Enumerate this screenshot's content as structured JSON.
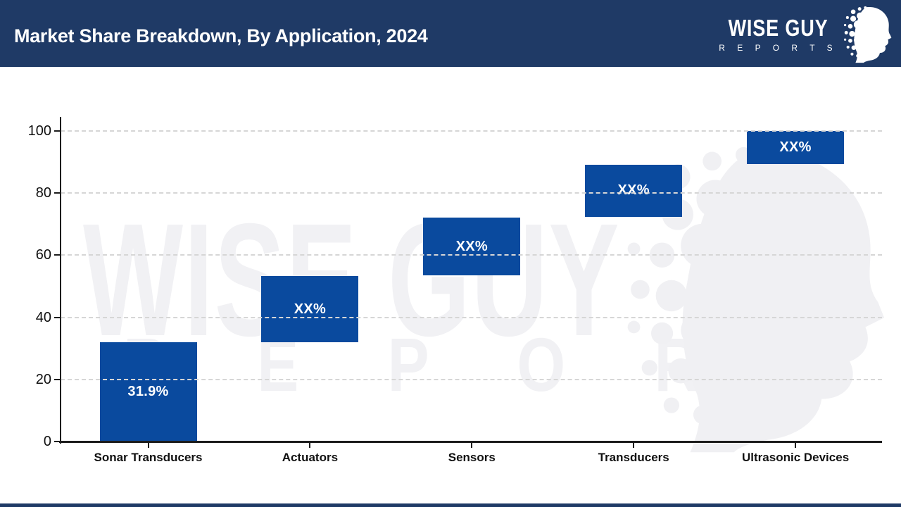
{
  "header": {
    "title": "Market Share Breakdown, By Application, 2024",
    "brand": {
      "line1": "WISE GUY",
      "line2": "R E P O R T S"
    }
  },
  "watermark": {
    "line1": "WISE GUY",
    "line2": "R E P O R T S"
  },
  "colors": {
    "header_bg": "#1f3a66",
    "footer_bg": "#1f3a66",
    "bar": "#0a4a9e",
    "gridline": "#d6d6d6",
    "axis": "#1c1c1c",
    "bar_label": "#ffffff",
    "watermark": "#f1f1f4"
  },
  "chart_data": {
    "type": "bar",
    "subtype": "waterfall",
    "title": "Market Share Breakdown, By Application, 2024",
    "categories": [
      "Sonar Transducers",
      "Actuators",
      "Sensors",
      "Transducers",
      "Ultrasonic Devices"
    ],
    "segments": [
      {
        "category": "Sonar Transducers",
        "start": 0,
        "end": 31.9,
        "label": "31.9%"
      },
      {
        "category": "Actuators",
        "start": 31.9,
        "end": 53.2,
        "label": "XX%"
      },
      {
        "category": "Sensors",
        "start": 53.4,
        "end": 72.0,
        "label": "XX%"
      },
      {
        "category": "Transducers",
        "start": 72.3,
        "end": 89.2,
        "label": "XX%"
      },
      {
        "category": "Ultrasonic Devices",
        "start": 89.4,
        "end": 100.0,
        "label": "XX%"
      }
    ],
    "xlabel": "",
    "ylabel": "",
    "ylim": [
      0,
      100
    ],
    "yticks": [
      0,
      20,
      40,
      60,
      80,
      100
    ],
    "grid": "horizontal dashed, drawn over bars",
    "legend": "none"
  }
}
